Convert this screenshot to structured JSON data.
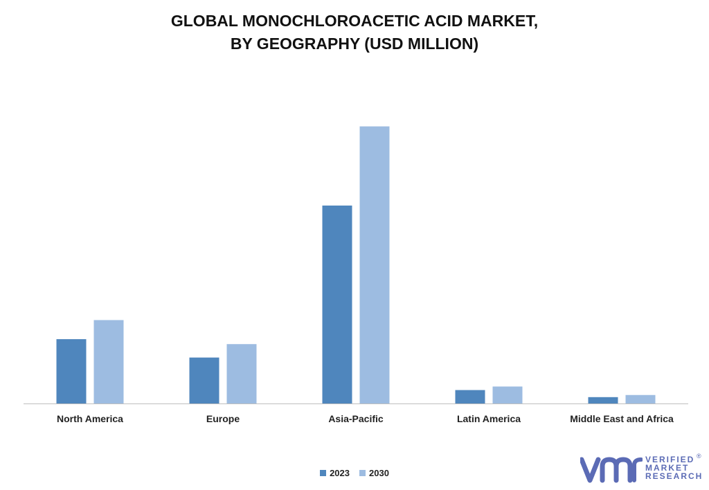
{
  "chart_data": {
    "type": "bar",
    "title_lines": [
      "GLOBAL MONOCHLOROACETIC ACID MARKET,",
      "BY GEOGRAPHY (USD MILLION)"
    ],
    "categories": [
      "North America",
      "Europe",
      "Asia-Pacific",
      "Latin America",
      "Middle East and Africa"
    ],
    "series": [
      {
        "name": "2023",
        "values": [
          91,
          65,
          280,
          19,
          9
        ]
      },
      {
        "name": "2030",
        "values": [
          118,
          84,
          392,
          24,
          12
        ]
      }
    ],
    "ylim": [
      0,
      420
    ],
    "grid": false,
    "legend_position": "bottom-center",
    "colors": {
      "2023": "#4f86bd",
      "2030": "#9dbce1",
      "axis": "#bfbfbf"
    }
  },
  "logo": {
    "lines": [
      "VERIFIED",
      "MARKET",
      "RESEARCH"
    ],
    "mark": "®",
    "color": "#5b6bb5"
  }
}
